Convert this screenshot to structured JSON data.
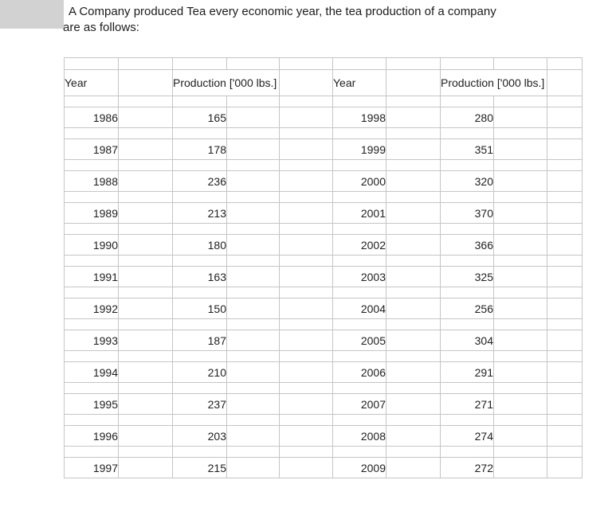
{
  "question": {
    "line1": "A Company produced Tea every economic year, the tea production of a company",
    "line2": "are as follows:"
  },
  "table": {
    "headers": [
      "Year",
      "Production ['000 lbs.]",
      "Year",
      "Production ['000 lbs.]"
    ],
    "rows": [
      [
        "1986",
        "165",
        "1998",
        "280"
      ],
      [
        "1987",
        "178",
        "1999",
        "351"
      ],
      [
        "1988",
        "236",
        "2000",
        "320"
      ],
      [
        "1989",
        "213",
        "2001",
        "370"
      ],
      [
        "1990",
        "180",
        "2002",
        "366"
      ],
      [
        "1991",
        "163",
        "2003",
        "325"
      ],
      [
        "1992",
        "150",
        "2004",
        "256"
      ],
      [
        "1993",
        "187",
        "2005",
        "304"
      ],
      [
        "1994",
        "210",
        "2006",
        "291"
      ],
      [
        "1995",
        "237",
        "2007",
        "271"
      ],
      [
        "1996",
        "203",
        "2008",
        "274"
      ],
      [
        "1997",
        "215",
        "2009",
        "272"
      ]
    ]
  },
  "colors": {
    "table_border": "#c5c5c5",
    "corner_gray": "#d2d2d2",
    "text": "#1f1f1f",
    "background": "#ffffff"
  }
}
